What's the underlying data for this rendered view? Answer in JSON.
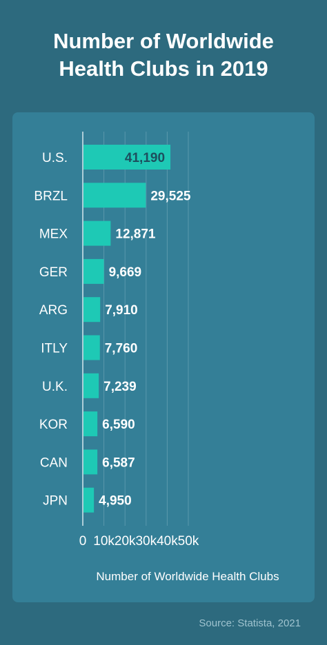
{
  "title_line1": "Number of Worldwide",
  "title_line2": "Health Clubs in 2019",
  "source": "Source: Statista, 2021",
  "colors": {
    "background": "#2d6a7e",
    "panel": "#347f97",
    "bar": "#1ec9b5",
    "inside_label": "#1d4f5e",
    "text": "#ffffff"
  },
  "chart_data": {
    "type": "bar",
    "orientation": "horizontal",
    "xlabel": "Number of Worldwide Health Clubs",
    "ylabel": "",
    "xlim": [
      0,
      50000
    ],
    "ticks": [
      {
        "value": 0,
        "label": "0"
      },
      {
        "value": 10000,
        "label": "10k"
      },
      {
        "value": 20000,
        "label": "20k"
      },
      {
        "value": 30000,
        "label": "30k"
      },
      {
        "value": 40000,
        "label": "40k"
      },
      {
        "value": 50000,
        "label": "50k"
      }
    ],
    "categories": [
      "U.S.",
      "BRZL",
      "MEX",
      "GER",
      "ARG",
      "ITLY",
      "U.K.",
      "KOR",
      "CAN",
      "JPN"
    ],
    "values": [
      41190,
      29525,
      12871,
      9669,
      7910,
      7760,
      7239,
      6590,
      6587,
      4950
    ],
    "value_labels": [
      "41,190",
      "29,525",
      "12,871",
      "9,669",
      "7,910",
      "7,760",
      "7,239",
      "6,590",
      "6,587",
      "4,950"
    ],
    "grid": true
  }
}
